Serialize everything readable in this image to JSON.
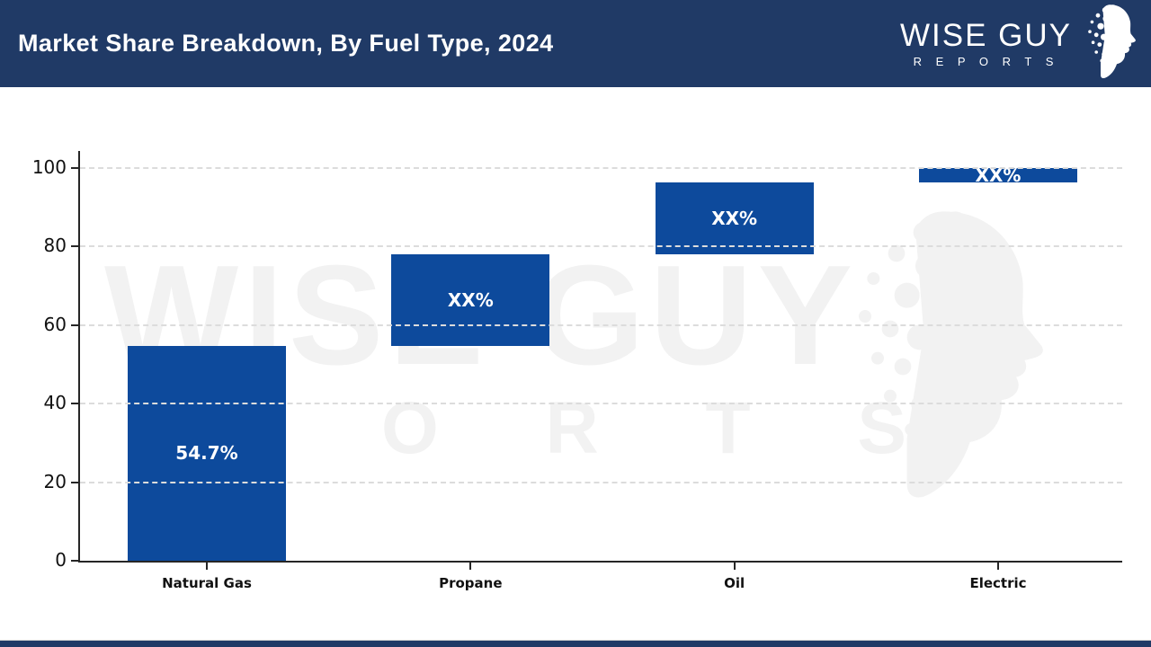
{
  "header": {
    "title": "Market Share Breakdown, By Fuel Type, 2024",
    "logo": {
      "line1": "WISE GUY",
      "line2": "R E P O R T S"
    }
  },
  "watermark": {
    "line1": "WISE GUY",
    "line2": "P O R T S"
  },
  "chart_data": {
    "type": "bar",
    "variant": "waterfall",
    "title": "Market Share Breakdown, By Fuel Type, 2024",
    "categories": [
      "Natural Gas",
      "Propane",
      "Oil",
      "Electric"
    ],
    "segments": [
      {
        "category": "Natural Gas",
        "start": 0,
        "end": 54.7,
        "label": "54.7%"
      },
      {
        "category": "Propane",
        "start": 54.7,
        "end": 78.0,
        "label": "XX%"
      },
      {
        "category": "Oil",
        "start": 78.0,
        "end": 96.2,
        "label": "XX%"
      },
      {
        "category": "Electric",
        "start": 96.2,
        "end": 100.0,
        "label": "XX%"
      }
    ],
    "yticks": [
      0,
      20,
      40,
      60,
      80,
      100
    ],
    "ylim": [
      0,
      104.5
    ],
    "xlabel": "",
    "ylabel": "",
    "grid": "dashed-horizontal",
    "legend": false,
    "bar_color": "#0d4a9c",
    "value_label_color": "#ffffff"
  },
  "colors": {
    "header_bg": "#203a66",
    "footer_bg": "#203a66",
    "bar": "#0d4a9c",
    "gridline": "#dcdcdc",
    "axis": "#262626",
    "tick_text": "#111111",
    "title_text": "#ffffff",
    "watermark": "#f2f2f2"
  }
}
